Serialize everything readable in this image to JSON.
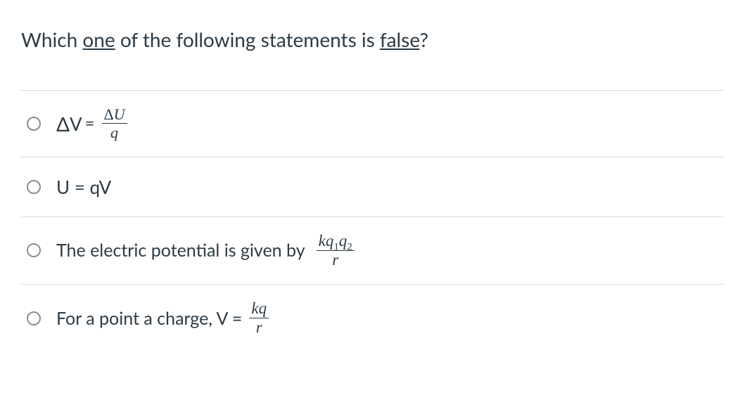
{
  "colors": {
    "text": "#2d3b45",
    "divider": "#d6d9db",
    "radio_border": "#888e94",
    "background": "#ffffff"
  },
  "question": {
    "prefix": "Which ",
    "underlined1": "one",
    "middle": " of the following statements is ",
    "underlined2": "false",
    "suffix": "?"
  },
  "options": {
    "a": {
      "lhs_delta": "Δ",
      "lhs_var": "V",
      "equals": " = ",
      "frac_num_delta": "Δ",
      "frac_num_var": "U",
      "frac_den": "q"
    },
    "b": {
      "text": "U = qV"
    },
    "c": {
      "label": "The electric potential is given by",
      "num_k": "k",
      "num_q": "q",
      "num_sub1": "1",
      "num_q2": "q",
      "num_sub2": "2",
      "den": "r"
    },
    "d": {
      "label": "For a point a charge, V = ",
      "num_k": "k",
      "num_q": "q",
      "den": "r"
    }
  }
}
